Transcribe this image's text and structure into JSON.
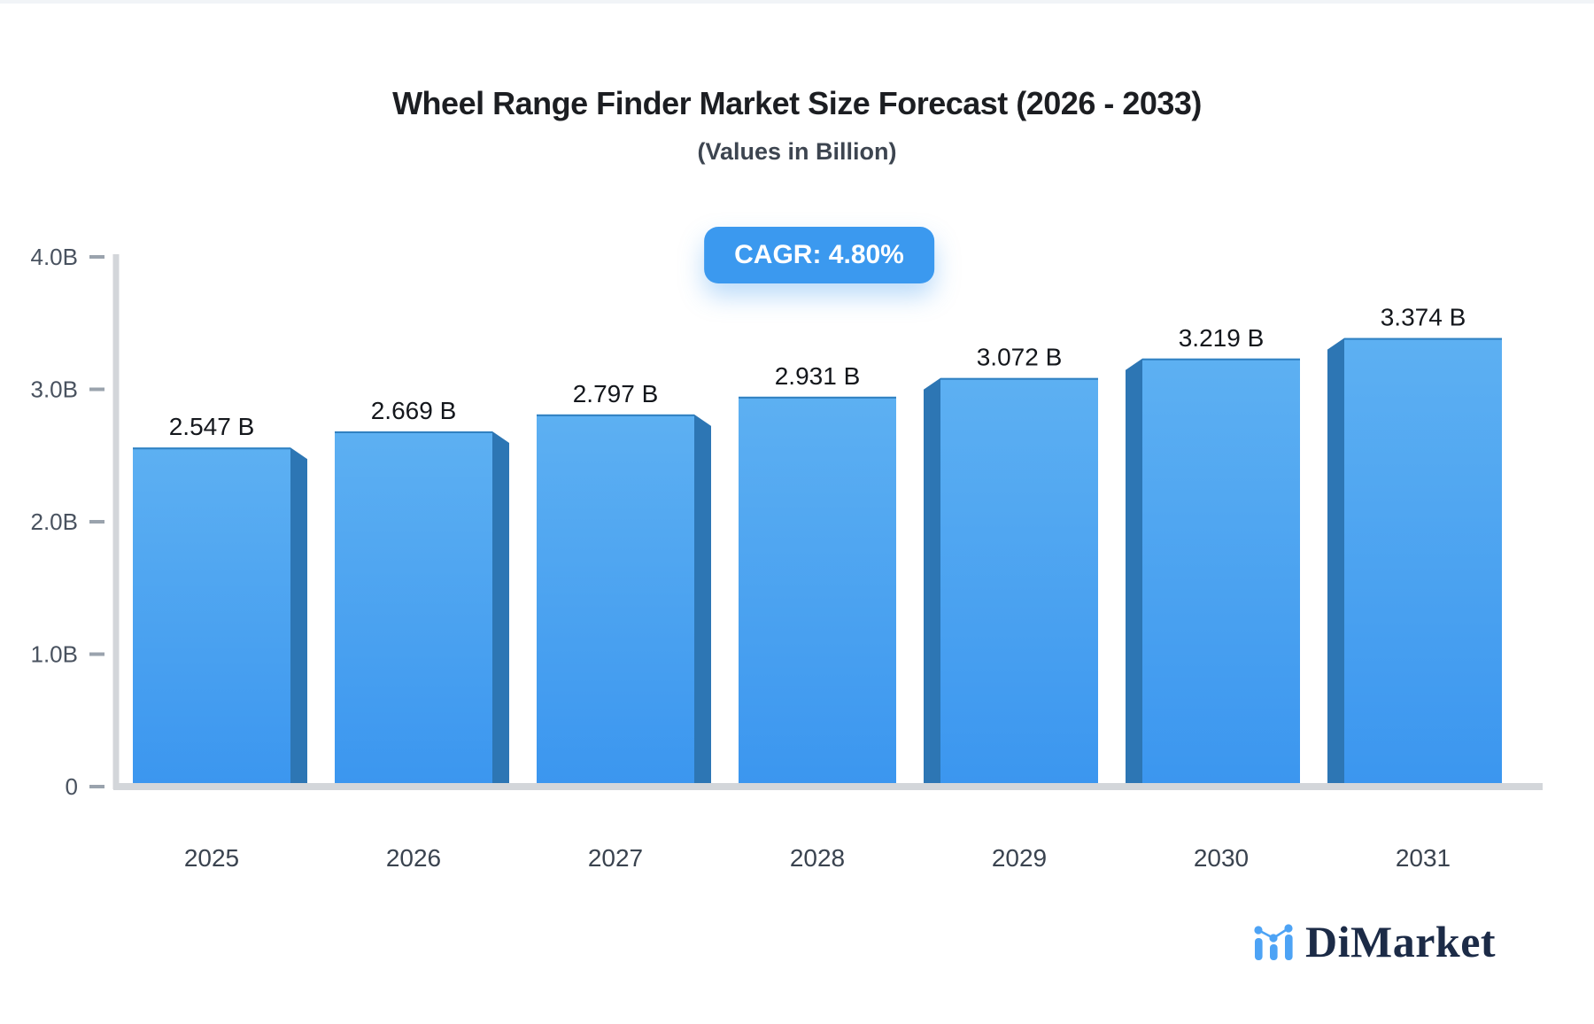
{
  "page": {
    "title": "Wheel Range Finder Market Size Forecast (2026 - 2033)",
    "subtitle": "(Values in Billion)",
    "cagr_badge": "CAGR: 4.80%",
    "badge_color": "#3b99ef",
    "brand": {
      "name": "DiMarket",
      "text_color": "#1c2b47",
      "icon_color": "#4da3f5"
    }
  },
  "chart_data": {
    "type": "bar",
    "title": "Wheel Range Finder Market Size Forecast (2026 - 2033)",
    "subtitle": "(Values in Billion)",
    "cagr": "4.80%",
    "categories": [
      "2025",
      "2026",
      "2027",
      "2028",
      "2029",
      "2030",
      "2031"
    ],
    "values": [
      2.547,
      2.669,
      2.797,
      2.931,
      3.072,
      3.219,
      3.374
    ],
    "value_labels": [
      "2.547 B",
      "2.669 B",
      "2.797 B",
      "2.931 B",
      "3.072 B",
      "3.219 B",
      "3.374 B"
    ],
    "unit": "Billion",
    "ylim": [
      0,
      4
    ],
    "yticks": [
      {
        "value": 0,
        "label": "0"
      },
      {
        "value": 1,
        "label": "1.0B"
      },
      {
        "value": 2,
        "label": "2.0B"
      },
      {
        "value": 3,
        "label": "3.0B"
      },
      {
        "value": 4,
        "label": "4.0B"
      }
    ],
    "grid": false,
    "legend": "none",
    "colors": {
      "bar_top": "#5db0f2",
      "bar_bottom": "#3b96ef",
      "bar_side": "#2d76b4",
      "bar_top_edge": "#3181c1",
      "axis_line": "#d3d6da",
      "tick_dash": "#9aa3ad",
      "ytick_label": "#49525f",
      "xtick_label": "#3a434f",
      "value_label": "#14171c"
    }
  }
}
